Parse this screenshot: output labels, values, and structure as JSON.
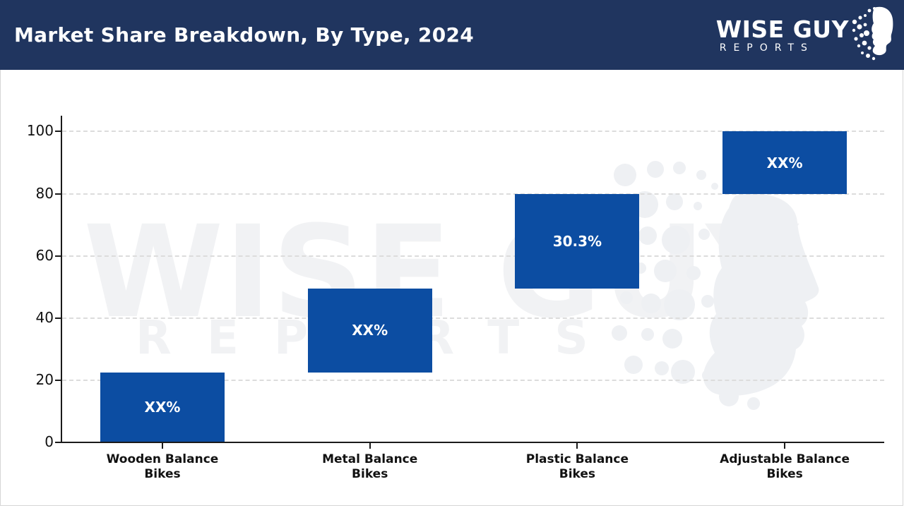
{
  "header": {
    "title": "Market Share Breakdown, By Type, 2024",
    "logo_line1": "WISE GUY",
    "logo_line2": "REPORTS"
  },
  "watermark": {
    "line1": "WISE GUY",
    "line2": "REPORTS"
  },
  "colors": {
    "header_bg": "#20355f",
    "bar": "#0c4da2",
    "bar_label": "#ffffff",
    "gridline": "#dcdcdc",
    "axis": "#1a1a1a",
    "watermark": "#f1f2f4"
  },
  "chart_data": {
    "type": "bar",
    "subtype": "waterfall-floating-bars",
    "title": "Market Share Breakdown, By Type, 2024",
    "unit": "percent market share",
    "categories": [
      "Wooden Balance Bikes",
      "Metal Balance Bikes",
      "Plastic Balance Bikes",
      "Adjustable Balance Bikes"
    ],
    "bars": [
      {
        "category": "Wooden Balance Bikes",
        "category_lines": [
          "Wooden Balance",
          "Bikes"
        ],
        "start": 0,
        "end": 22.5,
        "value": 22.5,
        "label": "XX%",
        "value_masked": true
      },
      {
        "category": "Metal Balance Bikes",
        "category_lines": [
          "Metal Balance",
          "Bikes"
        ],
        "start": 22.5,
        "end": 49.5,
        "value": 27.0,
        "label": "XX%",
        "value_masked": true
      },
      {
        "category": "Plastic Balance Bikes",
        "category_lines": [
          "Plastic Balance",
          "Bikes"
        ],
        "start": 49.5,
        "end": 79.8,
        "value": 30.3,
        "label": "30.3%",
        "value_masked": false
      },
      {
        "category": "Adjustable Balance Bikes",
        "category_lines": [
          "Adjustable Balance",
          "Bikes"
        ],
        "start": 79.8,
        "end": 100,
        "value": 20.2,
        "label": "XX%",
        "value_masked": true
      }
    ],
    "y_ticks": [
      0,
      20,
      40,
      60,
      80,
      100
    ],
    "ylim": [
      0,
      105
    ],
    "xlabel": "",
    "ylabel": "",
    "legend": "none",
    "grid": "horizontal dashed"
  }
}
